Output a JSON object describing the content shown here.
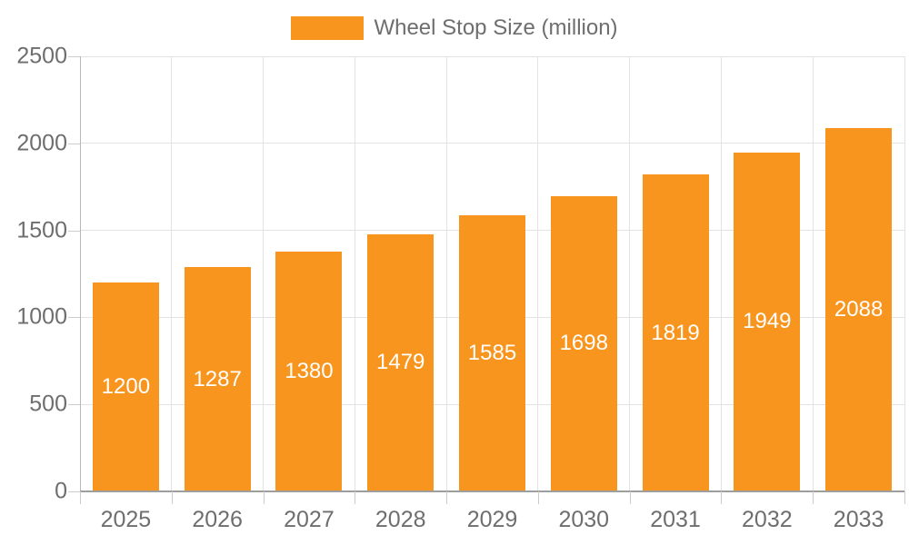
{
  "chart_data": {
    "type": "bar",
    "title": "Wheel Stop Size (million)",
    "categories": [
      "2025",
      "2026",
      "2027",
      "2028",
      "2029",
      "2030",
      "2031",
      "2032",
      "2033"
    ],
    "values": [
      1200,
      1287,
      1380,
      1479,
      1585,
      1698,
      1819,
      1949,
      2088
    ],
    "series": [
      {
        "name": "Wheel Stop Size (million)",
        "values": [
          1200,
          1287,
          1380,
          1479,
          1585,
          1698,
          1819,
          1949,
          2088
        ]
      }
    ],
    "xlabel": "",
    "ylabel": "",
    "ylim": [
      0,
      2500
    ],
    "yticks": [
      0,
      500,
      1000,
      1500,
      2000,
      2500
    ],
    "grid": true,
    "legend_position": "top",
    "bar_color": "#F8951E",
    "value_label_color": "#ffffff",
    "axis_text_color": "#6e6e6e",
    "gridline_color": "#e3e3e3"
  },
  "legend": {
    "label": "Wheel Stop Size (million)",
    "swatch_color": "#F8951E"
  }
}
